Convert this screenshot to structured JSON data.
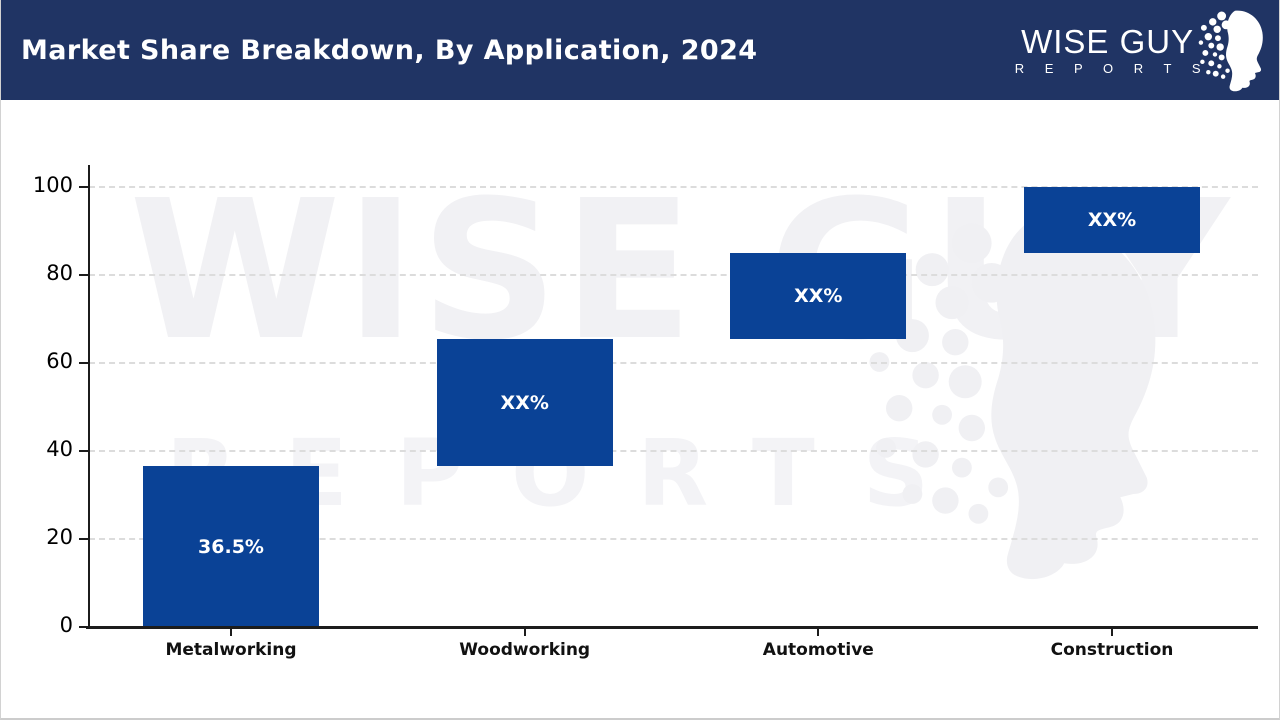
{
  "header": {
    "title": "Market Share Breakdown, By Application, 2024",
    "background": "#203464",
    "text_color": "#ffffff",
    "brand": {
      "name": "WISE GUY",
      "subtitle": "R E P O R T S"
    }
  },
  "watermark": {
    "line1": "WISE GUY",
    "line2": "REPORTS"
  },
  "chart_data": {
    "type": "bar",
    "subtype": "floating-segment-waterfall",
    "title": "Market Share Breakdown, By Application, 2024",
    "categories": [
      "Metalworking",
      "Woodworking",
      "Automotive",
      "Construction"
    ],
    "segments": [
      {
        "category": "Metalworking",
        "start": 0,
        "end": 36.5,
        "label": "36.5%"
      },
      {
        "category": "Woodworking",
        "start": 36.5,
        "end": 65.5,
        "label": "XX%"
      },
      {
        "category": "Automotive",
        "start": 65.5,
        "end": 85,
        "label": "XX%"
      },
      {
        "category": "Construction",
        "start": 85,
        "end": 100,
        "label": "XX%"
      }
    ],
    "yticks": [
      0,
      20,
      40,
      60,
      80,
      100
    ],
    "ytick_labels": [
      "0",
      "20",
      "40",
      "60",
      "80",
      "100"
    ],
    "ylim": [
      0,
      105
    ],
    "xlabel": "",
    "ylabel": "",
    "grid": "horizontal-dashed",
    "legend": "none",
    "bar_color": "#0a4296",
    "bar_label_color": "#ffffff",
    "grid_color": "#dcdcdc",
    "axis_color": "#1c1c1c"
  }
}
